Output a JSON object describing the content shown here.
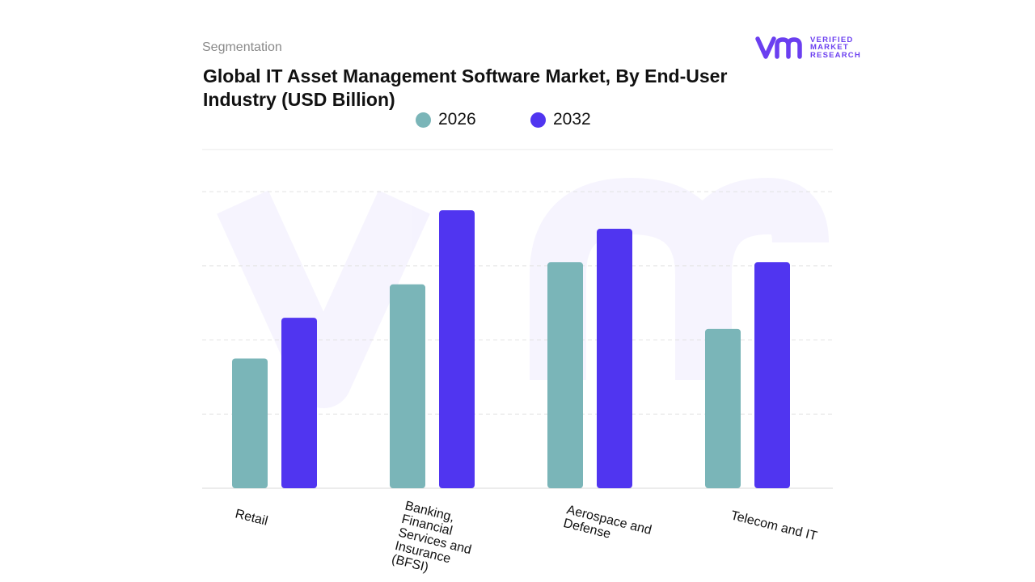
{
  "header": {
    "kicker": "Segmentation",
    "title": "Global IT Asset Management Software Market, By End-User Industry (USD Billion)"
  },
  "brand": {
    "logo_icon": "vmr-logo",
    "logo_lines": [
      "VERIFIED",
      "MARKET",
      "RESEARCH"
    ],
    "accent": "#6b3ff0"
  },
  "chart_data": {
    "type": "bar",
    "title": "Global IT Asset Management Software Market, By End-User Industry (USD Billion)",
    "categories": [
      "Retail",
      "Banking, Financial Services and Insurance (BFSI)",
      "Aerospace and Defense",
      "Telecom and IT"
    ],
    "category_label_lines": [
      [
        "Retail"
      ],
      [
        "Banking,",
        "Financial",
        "Services and",
        "Insurance",
        "(BFSI)"
      ],
      [
        "Aerospace and",
        "Defense"
      ],
      [
        "Telecom and IT"
      ]
    ],
    "series": [
      {
        "name": "2026",
        "color": "#7ab5b8",
        "values": [
          1.75,
          2.75,
          3.05,
          2.15
        ]
      },
      {
        "name": "2032",
        "color": "#5035f0",
        "values": [
          2.3,
          3.75,
          3.5,
          3.05
        ]
      }
    ],
    "ylim": [
      0,
      4.1
    ],
    "gridlines": [
      1,
      2,
      3,
      4
    ],
    "grid": true,
    "legend": "top-center",
    "xlabel": "",
    "ylabel": ""
  }
}
